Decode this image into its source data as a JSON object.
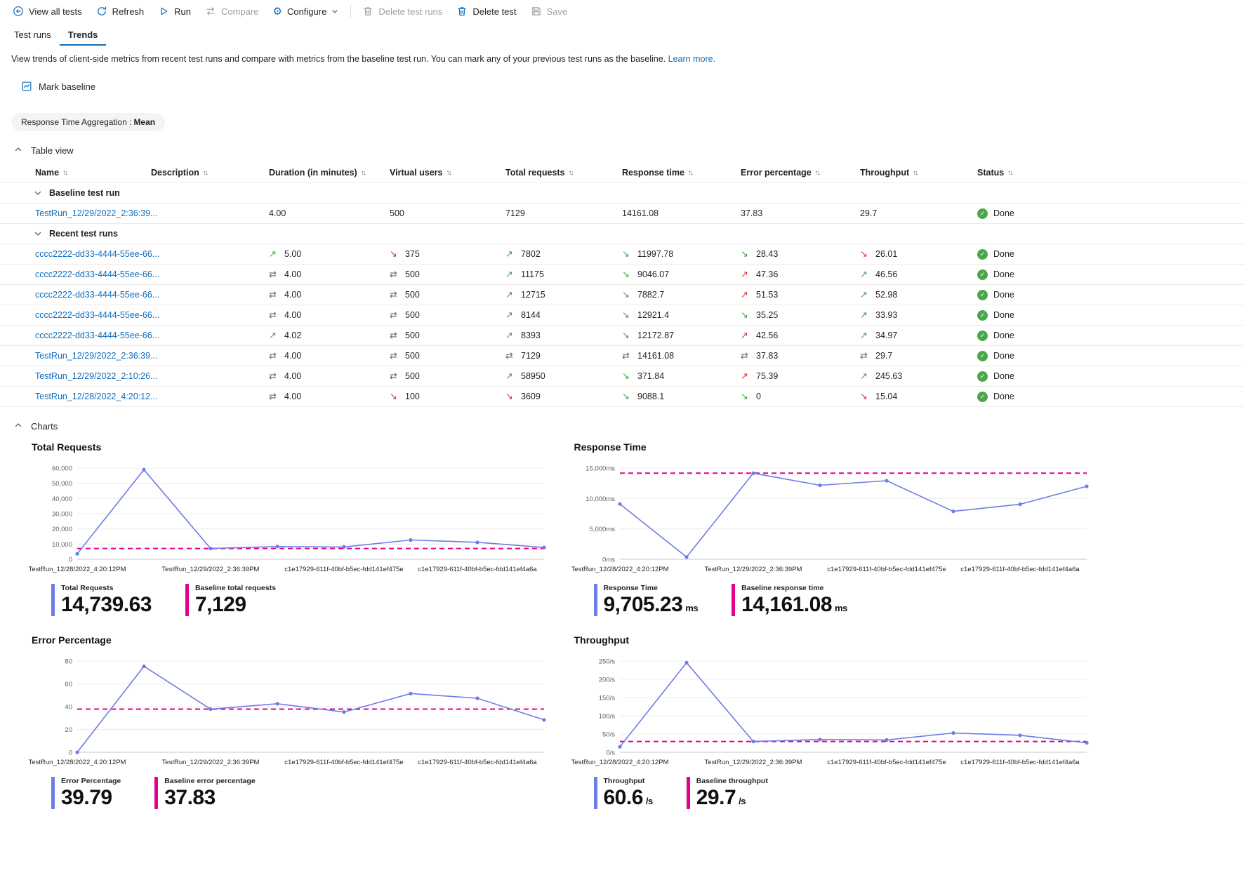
{
  "toolbar": {
    "items": [
      {
        "label": "View all tests",
        "icon": "back-circle-icon",
        "enabled": true
      },
      {
        "label": "Refresh",
        "icon": "refresh-icon",
        "enabled": true
      },
      {
        "label": "Run",
        "icon": "play-icon",
        "enabled": true
      },
      {
        "label": "Compare",
        "icon": "compare-arrows-icon",
        "enabled": false
      },
      {
        "label": "Configure",
        "icon": "gear-icon",
        "enabled": true,
        "has_dropdown": true
      },
      {
        "label": "Delete test runs",
        "icon": "trash-icon",
        "enabled": false
      },
      {
        "label": "Delete test",
        "icon": "trash-icon",
        "enabled": true
      },
      {
        "label": "Save",
        "icon": "save-icon",
        "enabled": false
      }
    ]
  },
  "tabs": [
    {
      "label": "Test runs",
      "active": false
    },
    {
      "label": "Trends",
      "active": true
    }
  ],
  "description": {
    "text": "View trends of client-side metrics from recent test runs and compare with metrics from the baseline test run. You can mark any of your previous test runs as the baseline.",
    "link_label": "Learn more."
  },
  "mark_baseline_label": "Mark baseline",
  "filter_pill": {
    "label": "Response Time Aggregation :",
    "value": "Mean"
  },
  "sections": {
    "table": "Table view",
    "charts": "Charts"
  },
  "icons": {
    "sort": "↑↓",
    "trend_up": "↗",
    "trend_down": "↘",
    "trend_same": "⇄",
    "done_check": "✓",
    "gear": "⚙"
  },
  "colors": {
    "accent": "#0f6cbd",
    "chart_line": "#6e7ce6",
    "baseline_pink": "#e3008c",
    "trend_positive": "#46a046",
    "trend_negative": "#d13438",
    "trend_neutral": "#5c6e80",
    "status_done_green": "#4ca64c"
  },
  "table": {
    "columns": [
      "Name",
      "Description",
      "Duration (in minutes)",
      "Virtual users",
      "Total requests",
      "Response time",
      "Error percentage",
      "Throughput",
      "Status"
    ],
    "groups": [
      {
        "label": "Baseline test run",
        "rows": [
          {
            "name": "TestRun_12/29/2022_2:36:39...",
            "description": "",
            "metrics": [
              {
                "value": "4.00"
              },
              {
                "value": "500"
              },
              {
                "value": "7129"
              },
              {
                "value": "14161.08"
              },
              {
                "value": "37.83"
              },
              {
                "value": "29.7"
              }
            ],
            "status": "Done"
          }
        ]
      },
      {
        "label": "Recent test runs",
        "rows": [
          {
            "name": "cccc2222-dd33-4444-55ee-66...",
            "description": "",
            "metrics": [
              {
                "trend": "up",
                "sentiment": "positive",
                "value": "5.00"
              },
              {
                "trend": "down",
                "sentiment": "negative",
                "value": "375"
              },
              {
                "trend": "up",
                "sentiment": "positive",
                "value": "7802"
              },
              {
                "trend": "down",
                "sentiment": "positive",
                "value": "11997.78"
              },
              {
                "trend": "down",
                "sentiment": "positive",
                "value": "28.43"
              },
              {
                "trend": "down",
                "sentiment": "negative",
                "value": "26.01"
              }
            ],
            "status": "Done"
          },
          {
            "name": "cccc2222-dd33-4444-55ee-66...",
            "description": "",
            "metrics": [
              {
                "trend": "same",
                "sentiment": "neutral",
                "value": "4.00"
              },
              {
                "trend": "same",
                "sentiment": "neutral",
                "value": "500"
              },
              {
                "trend": "up",
                "sentiment": "positive",
                "value": "11175"
              },
              {
                "trend": "down",
                "sentiment": "positive",
                "value": "9046.07"
              },
              {
                "trend": "up",
                "sentiment": "negative",
                "value": "47.36"
              },
              {
                "trend": "up",
                "sentiment": "positive",
                "value": "46.56"
              }
            ],
            "status": "Done"
          },
          {
            "name": "cccc2222-dd33-4444-55ee-66...",
            "description": "",
            "metrics": [
              {
                "trend": "same",
                "sentiment": "neutral",
                "value": "4.00"
              },
              {
                "trend": "same",
                "sentiment": "neutral",
                "value": "500"
              },
              {
                "trend": "up",
                "sentiment": "positive",
                "value": "12715"
              },
              {
                "trend": "down",
                "sentiment": "positive",
                "value": "7882.7"
              },
              {
                "trend": "up",
                "sentiment": "negative",
                "value": "51.53"
              },
              {
                "trend": "up",
                "sentiment": "positive",
                "value": "52.98"
              }
            ],
            "status": "Done"
          },
          {
            "name": "cccc2222-dd33-4444-55ee-66...",
            "description": "",
            "metrics": [
              {
                "trend": "same",
                "sentiment": "neutral",
                "value": "4.00"
              },
              {
                "trend": "same",
                "sentiment": "neutral",
                "value": "500"
              },
              {
                "trend": "up",
                "sentiment": "positive",
                "value": "8144"
              },
              {
                "trend": "down",
                "sentiment": "positive",
                "value": "12921.4"
              },
              {
                "trend": "down",
                "sentiment": "positive",
                "value": "35.25"
              },
              {
                "trend": "up",
                "sentiment": "positive",
                "value": "33.93"
              }
            ],
            "status": "Done"
          },
          {
            "name": "cccc2222-dd33-4444-55ee-66...",
            "description": "",
            "metrics": [
              {
                "trend": "up",
                "sentiment": "positive",
                "value": "4.02"
              },
              {
                "trend": "same",
                "sentiment": "neutral",
                "value": "500"
              },
              {
                "trend": "up",
                "sentiment": "positive",
                "value": "8393"
              },
              {
                "trend": "down",
                "sentiment": "positive",
                "value": "12172.87"
              },
              {
                "trend": "up",
                "sentiment": "negative",
                "value": "42.56"
              },
              {
                "trend": "up",
                "sentiment": "positive",
                "value": "34.97"
              }
            ],
            "status": "Done"
          },
          {
            "name": "TestRun_12/29/2022_2:36:39...",
            "description": "",
            "metrics": [
              {
                "trend": "same",
                "sentiment": "neutral",
                "value": "4.00"
              },
              {
                "trend": "same",
                "sentiment": "neutral",
                "value": "500"
              },
              {
                "trend": "same",
                "sentiment": "neutral",
                "value": "7129"
              },
              {
                "trend": "same",
                "sentiment": "neutral",
                "value": "14161.08"
              },
              {
                "trend": "same",
                "sentiment": "neutral",
                "value": "37.83"
              },
              {
                "trend": "same",
                "sentiment": "neutral",
                "value": "29.7"
              }
            ],
            "status": "Done"
          },
          {
            "name": "TestRun_12/29/2022_2:10:26...",
            "description": "",
            "metrics": [
              {
                "trend": "same",
                "sentiment": "neutral",
                "value": "4.00"
              },
              {
                "trend": "same",
                "sentiment": "neutral",
                "value": "500"
              },
              {
                "trend": "up",
                "sentiment": "positive",
                "value": "58950"
              },
              {
                "trend": "down",
                "sentiment": "positive",
                "value": "371.84"
              },
              {
                "trend": "up",
                "sentiment": "negative",
                "value": "75.39"
              },
              {
                "trend": "up",
                "sentiment": "positive",
                "value": "245.63"
              }
            ],
            "status": "Done"
          },
          {
            "name": "TestRun_12/28/2022_4:20:12...",
            "description": "",
            "metrics": [
              {
                "trend": "same",
                "sentiment": "neutral",
                "value": "4.00"
              },
              {
                "trend": "down",
                "sentiment": "negative",
                "value": "100"
              },
              {
                "trend": "down",
                "sentiment": "negative",
                "value": "3609"
              },
              {
                "trend": "down",
                "sentiment": "positive",
                "value": "9088.1"
              },
              {
                "trend": "down",
                "sentiment": "positive",
                "value": "0"
              },
              {
                "trend": "down",
                "sentiment": "negative",
                "value": "15.04"
              }
            ],
            "status": "Done"
          }
        ]
      }
    ]
  },
  "chart_data": [
    {
      "type": "line",
      "title": "Total Requests",
      "values": [
        3609,
        58950,
        7129,
        8393,
        8144,
        12715,
        11175,
        7802
      ],
      "baseline": 7129,
      "ylim": [
        0,
        60000
      ],
      "yticks": [
        0,
        10000,
        20000,
        30000,
        40000,
        50000,
        60000
      ],
      "ytick_labels": [
        "0",
        "10,000",
        "20,000",
        "30,000",
        "40,000",
        "50,000",
        "60,000"
      ],
      "x_tick_labels": [
        "TestRun_12/28/2022_4:20:12PM",
        "TestRun_12/29/2022_2:36:39PM",
        "c1e17929-611f-40bf-b5ec-fdd141ef475e",
        "c1e17929-611f-40bf-b5ec-fdd141ef4a6a"
      ],
      "legend": [
        {
          "label": "Total Requests",
          "value": "14,739.63",
          "unit": "",
          "color": "#6e7ce6"
        },
        {
          "label": "Baseline total requests",
          "value": "7,129",
          "unit": "",
          "color": "#e3008c"
        }
      ]
    },
    {
      "type": "line",
      "title": "Response Time",
      "values": [
        9088.1,
        371.84,
        14161.08,
        12172.87,
        12921.4,
        7882.7,
        9046.07,
        11997.78
      ],
      "baseline": 14161.08,
      "ylim": [
        0,
        15000
      ],
      "yticks": [
        0,
        5000,
        10000,
        15000
      ],
      "ytick_labels": [
        "0ms",
        "5,000ms",
        "10,000ms",
        "15,000ms"
      ],
      "x_tick_labels": [
        "TestRun_12/28/2022_4:20:12PM",
        "TestRun_12/29/2022_2:36:39PM",
        "c1e17929-611f-40bf-b5ec-fdd141ef475e",
        "c1e17929-611f-40bf-b5ec-fdd141ef4a6a"
      ],
      "legend": [
        {
          "label": "Response Time",
          "value": "9,705.23",
          "unit": "ms",
          "color": "#6e7ce6"
        },
        {
          "label": "Baseline response time",
          "value": "14,161.08",
          "unit": "ms",
          "color": "#e3008c"
        }
      ]
    },
    {
      "type": "line",
      "title": "Error Percentage",
      "values": [
        0,
        75.39,
        37.83,
        42.56,
        35.25,
        51.53,
        47.36,
        28.43
      ],
      "baseline": 37.83,
      "ylim": [
        0,
        80
      ],
      "yticks": [
        0,
        20,
        40,
        60,
        80
      ],
      "ytick_labels": [
        "0",
        "20",
        "40",
        "60",
        "80"
      ],
      "x_tick_labels": [
        "TestRun_12/28/2022_4:20:12PM",
        "TestRun_12/29/2022_2:36:39PM",
        "c1e17929-611f-40bf-b5ec-fdd141ef475e",
        "c1e17929-611f-40bf-b5ec-fdd141ef4a6a"
      ],
      "legend": [
        {
          "label": "Error Percentage",
          "value": "39.79",
          "unit": "",
          "color": "#6e7ce6"
        },
        {
          "label": "Baseline error percentage",
          "value": "37.83",
          "unit": "",
          "color": "#e3008c"
        }
      ]
    },
    {
      "type": "line",
      "title": "Throughput",
      "values": [
        15.04,
        245.63,
        29.7,
        34.97,
        33.93,
        52.98,
        46.56,
        26.01
      ],
      "baseline": 29.7,
      "ylim": [
        0,
        250
      ],
      "yticks": [
        0,
        50,
        100,
        150,
        200,
        250
      ],
      "ytick_labels": [
        "0/s",
        "50/s",
        "100/s",
        "150/s",
        "200/s",
        "250/s"
      ],
      "x_tick_labels": [
        "TestRun_12/28/2022_4:20:12PM",
        "TestRun_12/29/2022_2:36:39PM",
        "c1e17929-611f-40bf-b5ec-fdd141ef475e",
        "c1e17929-611f-40bf-b5ec-fdd141ef4a6a"
      ],
      "legend": [
        {
          "label": "Throughput",
          "value": "60.6",
          "unit": "/s",
          "color": "#6e7ce6"
        },
        {
          "label": "Baseline throughput",
          "value": "29.7",
          "unit": "/s",
          "color": "#e3008c"
        }
      ]
    }
  ]
}
